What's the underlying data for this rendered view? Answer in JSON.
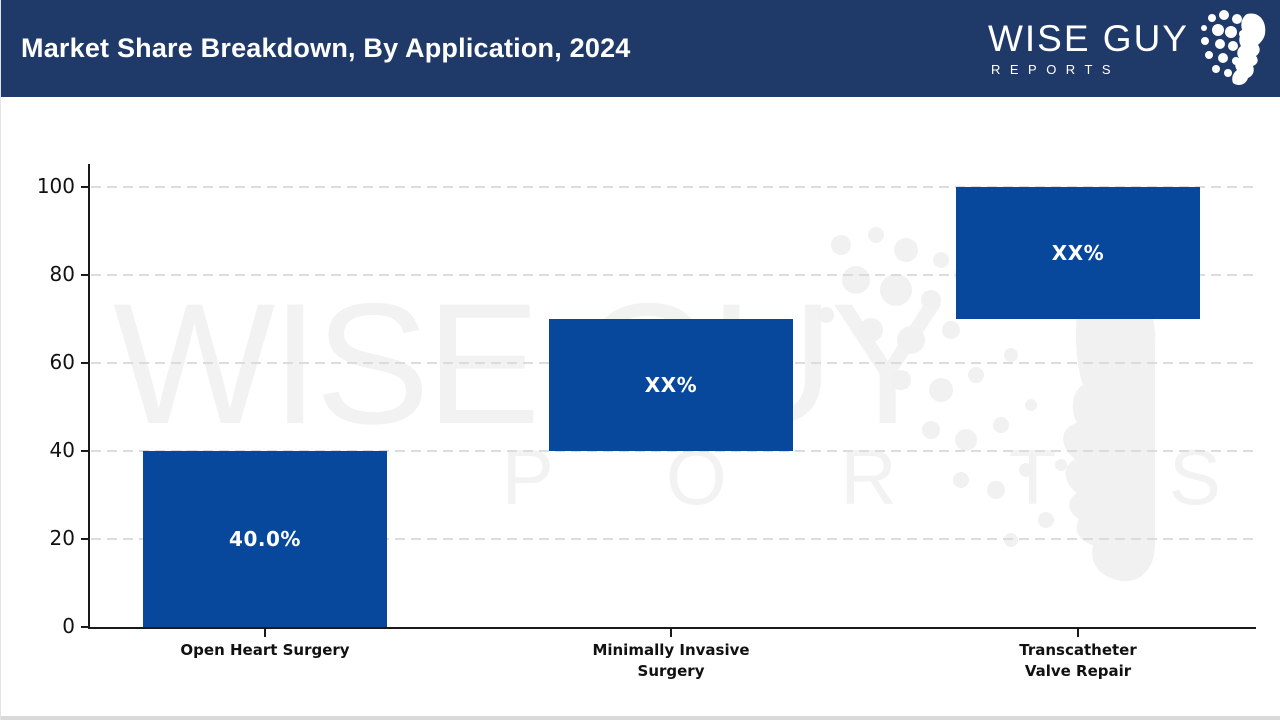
{
  "header": {
    "title": "Market Share Breakdown, By Application, 2024",
    "bg_color": "#1f3a68",
    "logo": {
      "wordmark": "WISE GUY",
      "subtext": "REPORTS"
    }
  },
  "watermark": {
    "wordmark": "WISE GUY",
    "subtext": "R E P O R T S"
  },
  "chart_data": {
    "type": "bar",
    "variant": "waterfall-range",
    "title": "Market Share Breakdown, By Application, 2024",
    "categories": [
      "Open Heart Surgery",
      "Minimally Invasive\nSurgery",
      "Transcatheter\nValve Repair"
    ],
    "bars": [
      {
        "category": "Open Heart Surgery",
        "start": 0,
        "end": 40,
        "label": "40.0%"
      },
      {
        "category": "Minimally Invasive Surgery",
        "start": 40,
        "end": 70,
        "label": "XX%"
      },
      {
        "category": "Transcatheter Valve Repair",
        "start": 70,
        "end": 100,
        "label": "XX%"
      }
    ],
    "yticks": [
      0,
      20,
      40,
      60,
      80,
      100
    ],
    "ylim": [
      0,
      105
    ],
    "bar_color": "#07489c",
    "bar_label_color": "#ffffff",
    "grid": {
      "horizontal": true,
      "style": "dashed",
      "color": "#dcdcdc"
    },
    "legend": "none",
    "xlabel": "",
    "ylabel": ""
  }
}
